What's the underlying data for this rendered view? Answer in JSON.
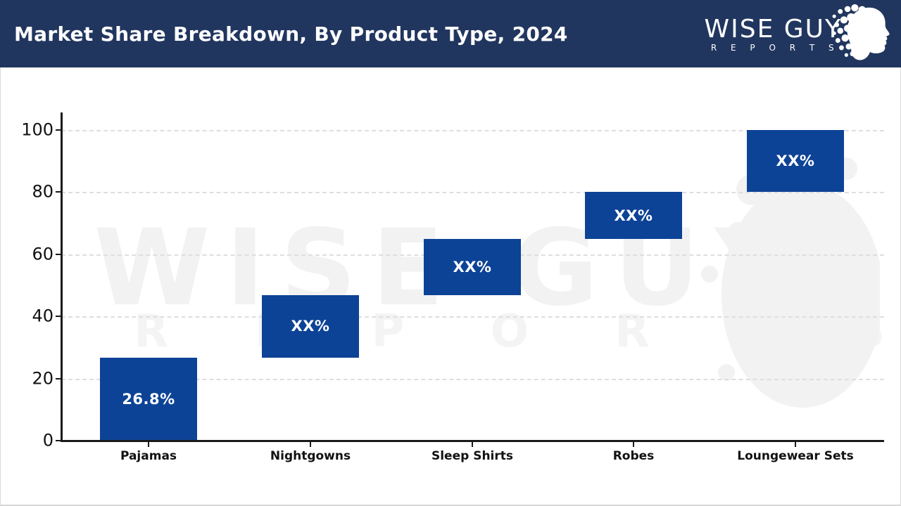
{
  "header": {
    "title": "Market Share Breakdown, By Product Type, 2024",
    "logo": {
      "wordmark": "WISE GUY",
      "subtitle": "R E P O R T S"
    }
  },
  "watermark": {
    "wordmark": "WISE GUY",
    "subtitle": "R E P O R T S"
  },
  "chart_data": {
    "type": "bar",
    "subtype": "waterfall",
    "title": "Market Share Breakdown, By Product Type, 2024",
    "categories": [
      "Pajamas",
      "Nightgowns",
      "Sleep Shirts",
      "Robes",
      "Loungewear Sets"
    ],
    "segments": [
      {
        "category": "Pajamas",
        "start": 0,
        "end": 26.8,
        "label": "26.8%"
      },
      {
        "category": "Nightgowns",
        "start": 26.8,
        "end": 46.8,
        "label": "XX%"
      },
      {
        "category": "Sleep Shirts",
        "start": 46.8,
        "end": 65,
        "label": "XX%"
      },
      {
        "category": "Robes",
        "start": 65,
        "end": 80,
        "label": "XX%"
      },
      {
        "category": "Loungewear Sets",
        "start": 80,
        "end": 100,
        "label": "XX%"
      }
    ],
    "yticks": [
      0,
      20,
      40,
      60,
      80,
      100
    ],
    "ylim": [
      0,
      106
    ],
    "xlabel": "",
    "ylabel": "",
    "grid": "horizontal-dashed",
    "legend": "none",
    "bar_color": "#0d4396",
    "bar_label_color": "#ffffff"
  },
  "colors": {
    "header_bg": "#21365f",
    "bar": "#0d4396",
    "grid": "#dedede",
    "axis": "#1a1a1a",
    "watermark": "#f2f2f2",
    "page_bg": "#ffffff",
    "border": "#d9d9d9"
  }
}
